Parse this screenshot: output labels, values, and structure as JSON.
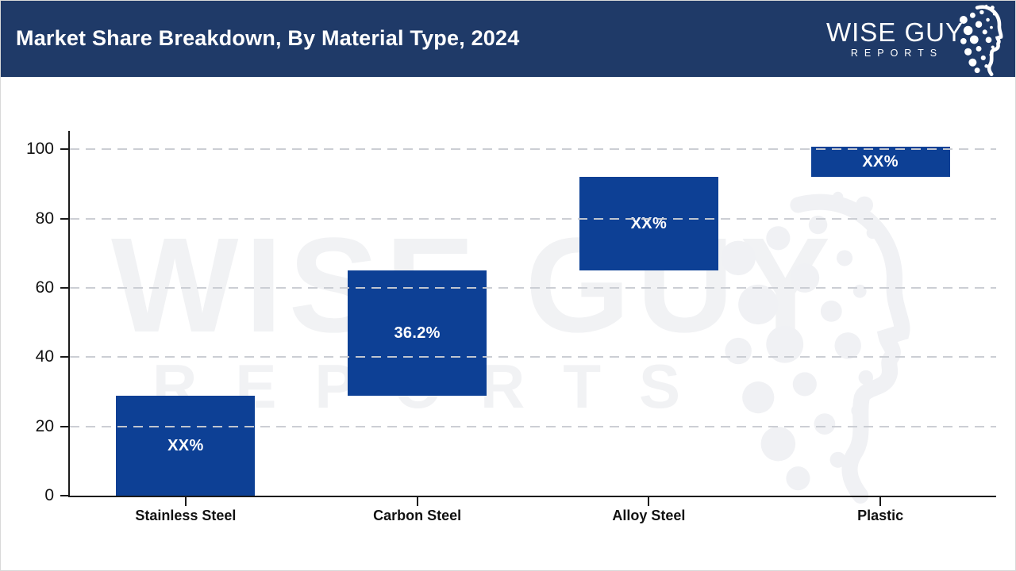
{
  "header": {
    "title": "Market Share Breakdown, By Material Type, 2024",
    "logo": {
      "brand": "WISE GUY",
      "sub": "REPORTS"
    }
  },
  "watermark": {
    "brand": "WISE GUY",
    "sub": "REPORTS"
  },
  "chart_data": {
    "type": "bar",
    "variant": "floating-segment-waterfall",
    "title": "Market Share Breakdown, By Material Type, 2024",
    "categories": [
      "Stainless Steel",
      "Carbon Steel",
      "Alloy Steel",
      "Plastic"
    ],
    "segments": [
      {
        "category": "Stainless Steel",
        "from": 0,
        "to": 28.8,
        "label": "XX%"
      },
      {
        "category": "Carbon Steel",
        "from": 28.8,
        "to": 65.0,
        "label": "36.2%"
      },
      {
        "category": "Alloy Steel",
        "from": 65.0,
        "to": 92.0,
        "label": "XX%"
      },
      {
        "category": "Plastic",
        "from": 92.0,
        "to": 100.7,
        "label": "XX%"
      }
    ],
    "yticks": [
      0,
      20,
      40,
      60,
      80,
      100
    ],
    "ylim": [
      0,
      105.3
    ],
    "xlabel": "",
    "ylabel": "",
    "grid": "horizontal dashed, drawn over bars",
    "legend": "none",
    "bar_color": "#0d4095",
    "bar_label_color": "#ffffff"
  },
  "colors": {
    "header_bg": "#1f3a68",
    "bar": "#0d4095",
    "grid": "#c9ccd2",
    "axis": "#1a1a1a",
    "watermark": "#f1f2f4",
    "page_border": "#d9d9d9"
  }
}
